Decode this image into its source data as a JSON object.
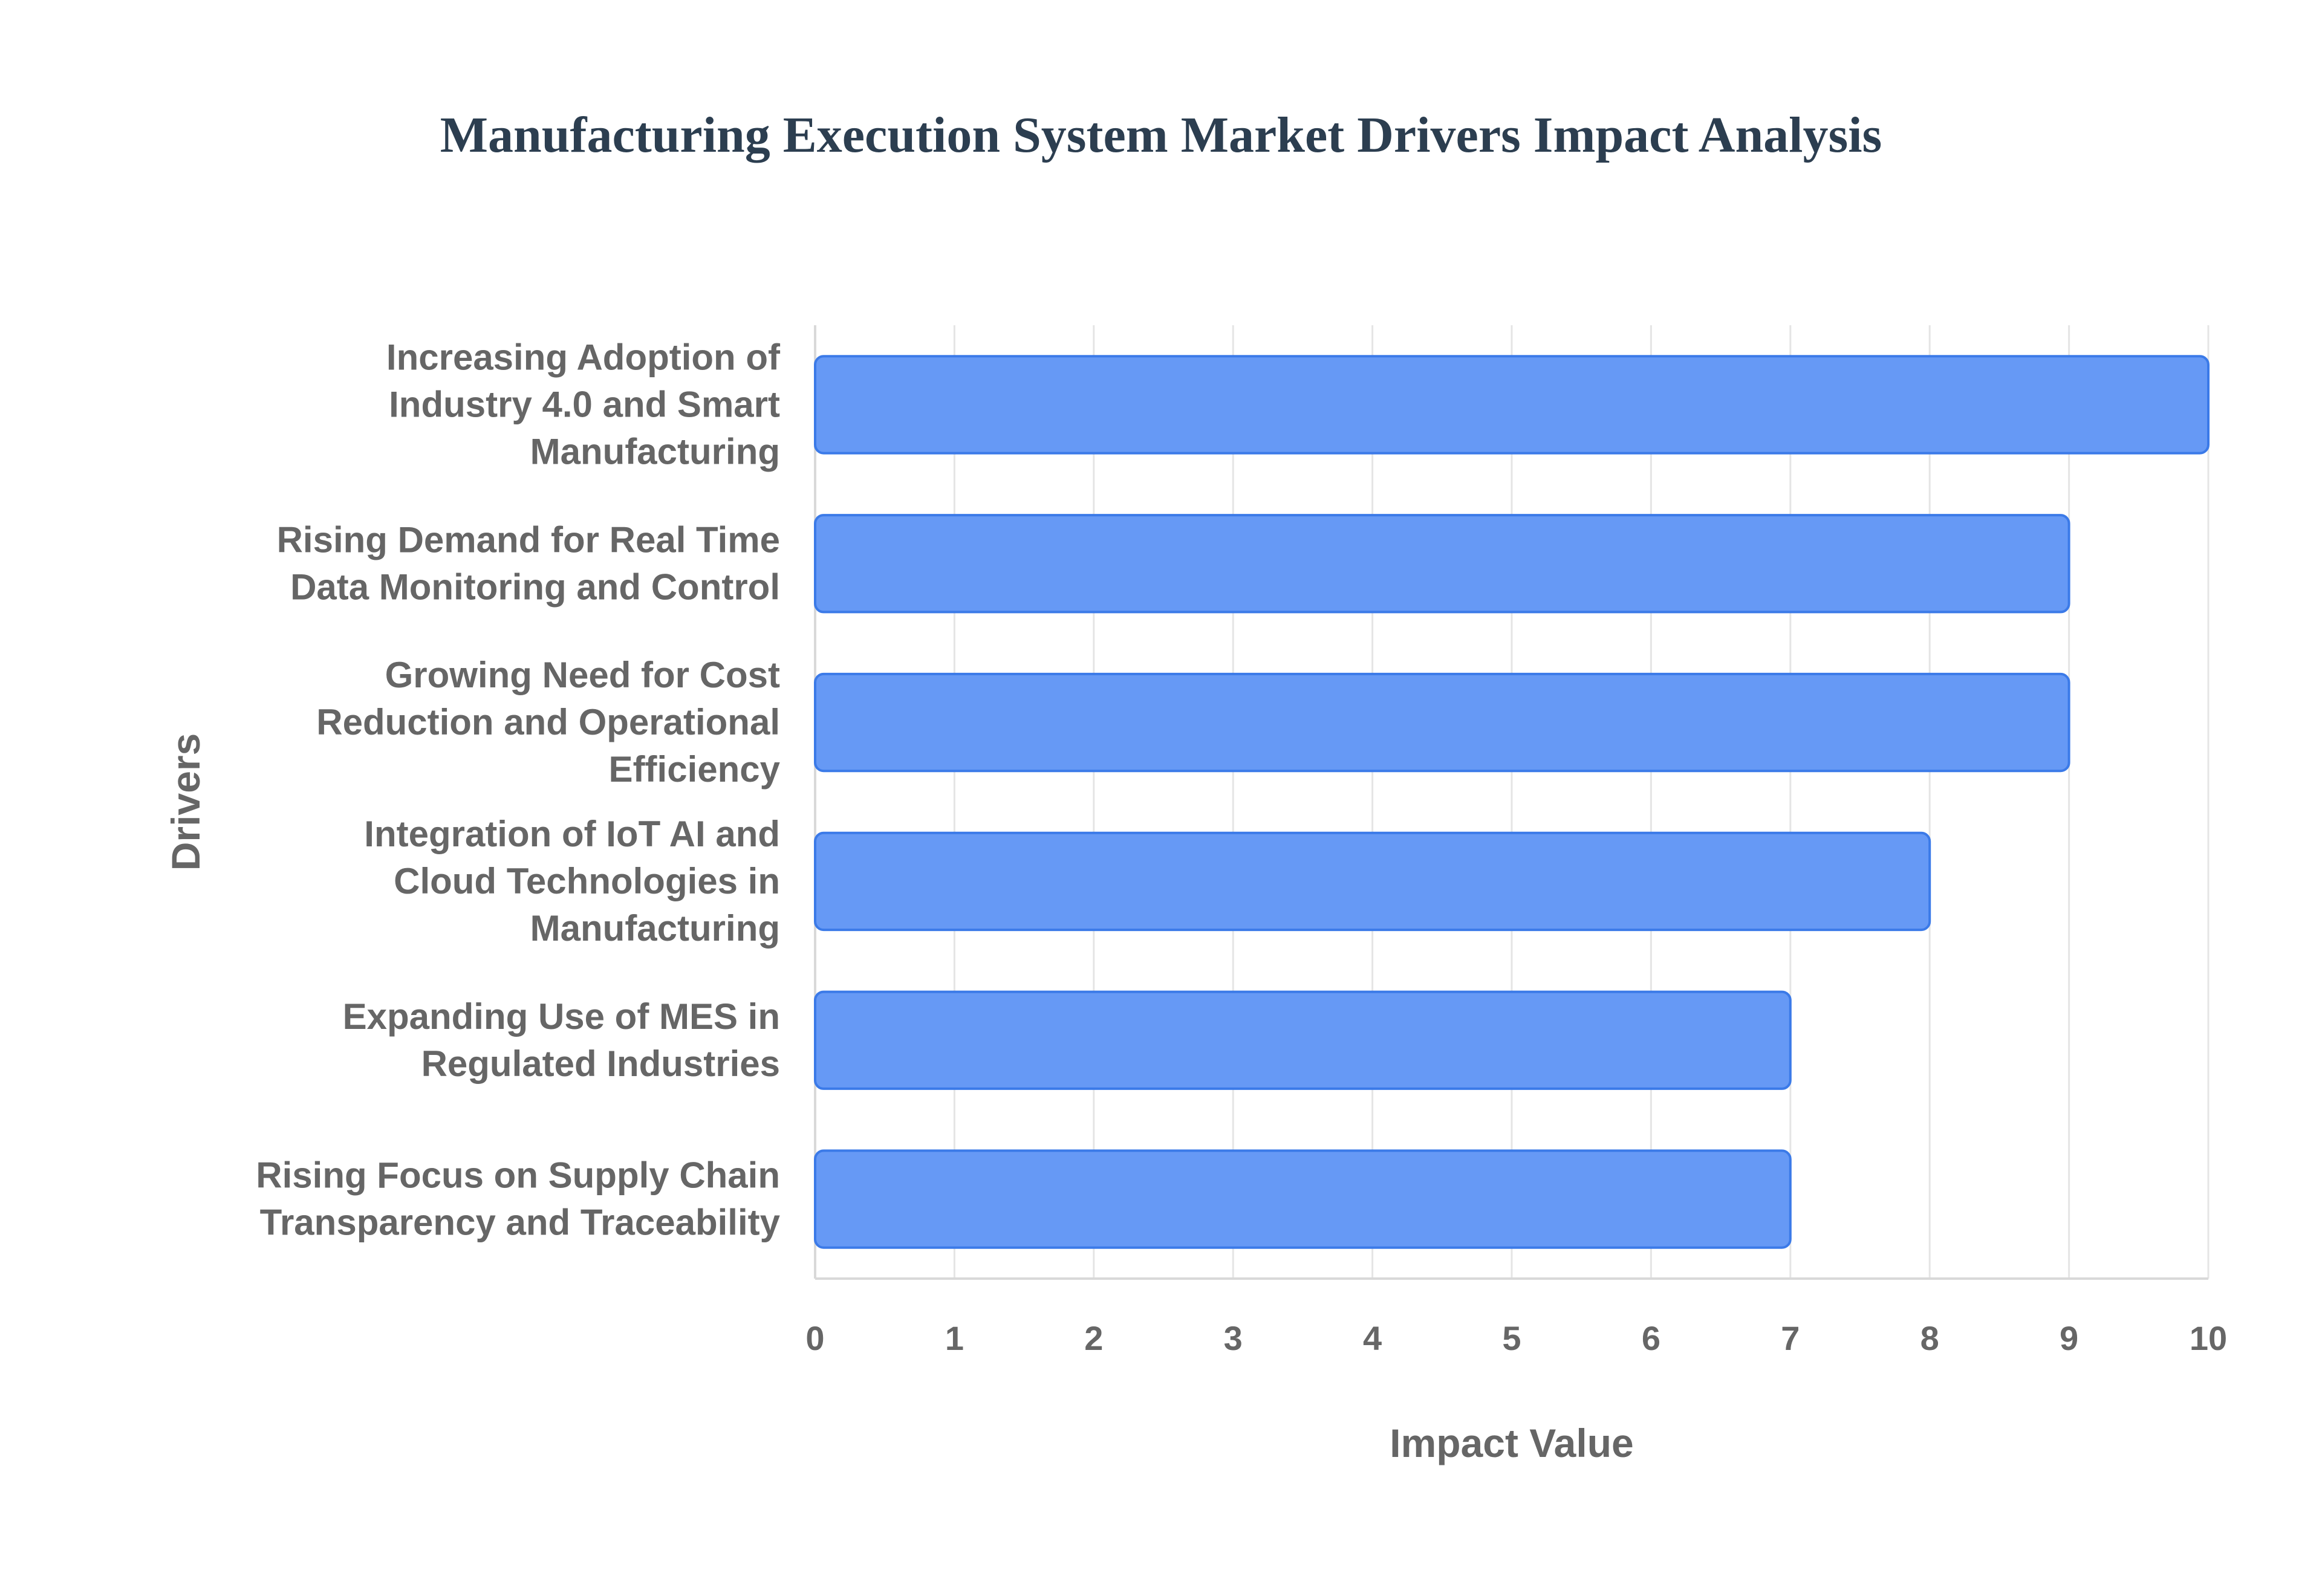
{
  "chart_data": {
    "type": "bar",
    "orientation": "horizontal",
    "title": "Manufacturing Execution System Market Drivers Impact Analysis",
    "xlabel": "Impact Value",
    "ylabel": "Drivers",
    "xlim": [
      0,
      10
    ],
    "x_ticks": [
      "0",
      "1",
      "2",
      "3",
      "4",
      "5",
      "6",
      "7",
      "8",
      "9",
      "10"
    ],
    "grid": true,
    "legend": "none",
    "categories": [
      [
        "Increasing Adoption of",
        "Industry 4.0 and Smart",
        "Manufacturing"
      ],
      [
        "Rising Demand for Real Time",
        "Data Monitoring and Control"
      ],
      [
        "Growing Need for Cost",
        "Reduction and Operational",
        "Efficiency"
      ],
      [
        "Integration of IoT AI and",
        "Cloud Technologies in",
        "Manufacturing"
      ],
      [
        "Expanding Use of MES in",
        "Regulated Industries"
      ],
      [
        "Rising Focus on Supply Chain",
        "Transparency and Traceability"
      ]
    ],
    "values": [
      10,
      9,
      9,
      8,
      7,
      7
    ],
    "colors": {
      "bar_fill": "#6699f5",
      "bar_stroke": "#3b7ae8",
      "grid": "#e5e5e5",
      "axis": "#d9d9d9",
      "text": "#666666",
      "title": "#2c3e50"
    }
  }
}
